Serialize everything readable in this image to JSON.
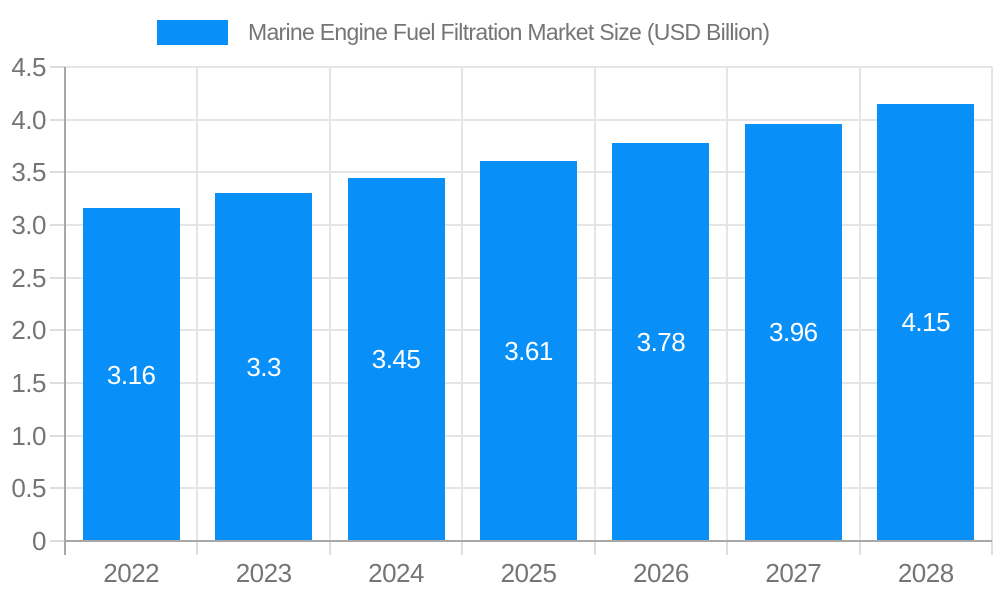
{
  "chart_data": {
    "type": "bar",
    "title": "Marine Engine Fuel Filtration Market Size (USD Billion)",
    "categories": [
      "2022",
      "2023",
      "2024",
      "2025",
      "2026",
      "2027",
      "2028"
    ],
    "series": [
      {
        "name": "Marine Engine Fuel Filtration Market Size (USD Billion)",
        "values": [
          3.16,
          3.3,
          3.45,
          3.61,
          3.78,
          3.96,
          4.15
        ]
      }
    ],
    "values": [
      3.16,
      3.3,
      3.45,
      3.61,
      3.78,
      3.96,
      4.15
    ],
    "value_labels": [
      "3.16",
      "3.3",
      "3.45",
      "3.61",
      "3.78",
      "3.96",
      "4.15"
    ],
    "xlabel": "",
    "ylabel": "",
    "ylim": [
      0,
      4.5
    ],
    "y_tick_values": [
      0,
      0.5,
      1,
      1.5,
      2,
      2.5,
      3,
      3.5,
      4,
      4.5
    ],
    "y_tick_labels": [
      "0",
      "0.5",
      "1.0",
      "1.5",
      "2.0",
      "2.5",
      "3.0",
      "3.5",
      "4.0",
      "4.5"
    ],
    "grid": true,
    "legend_position": "top",
    "colors": {
      "bar": "#0890F8",
      "grid": "#e5e5e5",
      "tick": "#dedede",
      "axis_border": "#a8a8a8",
      "label_text": "#757575",
      "bar_label_text": "#ffffff",
      "background": "#ffffff"
    }
  }
}
